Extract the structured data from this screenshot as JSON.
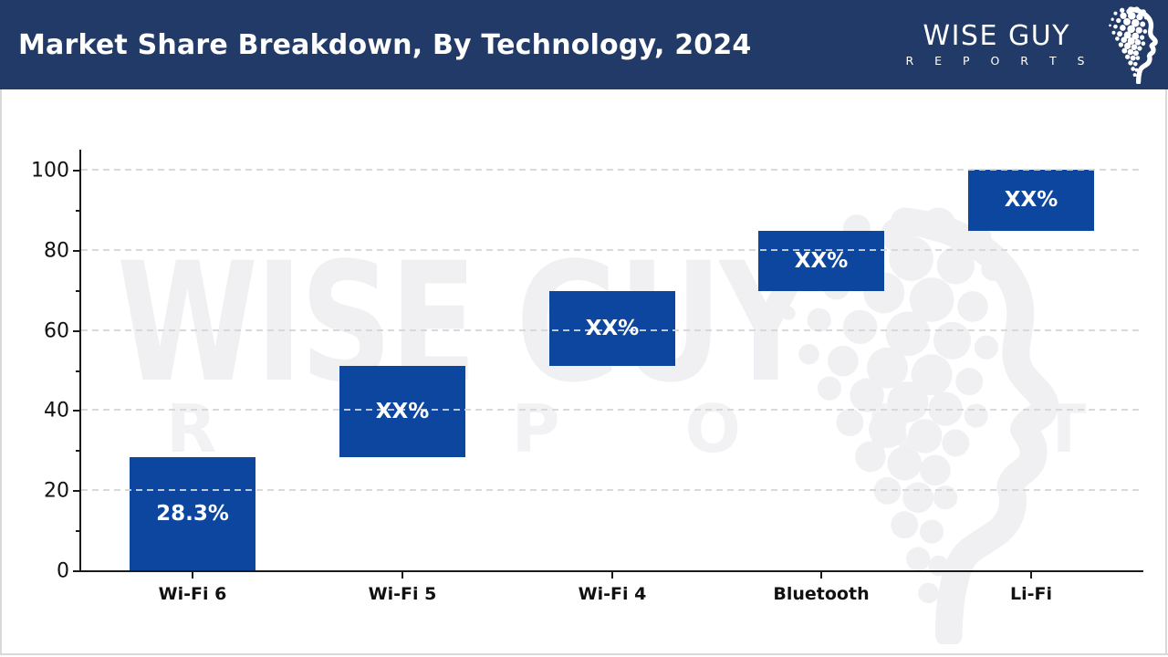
{
  "header": {
    "title": "Market Share Breakdown, By Technology, 2024",
    "logo": {
      "line1": "WISE GUY",
      "line2": "R E P O R T S"
    }
  },
  "watermark": {
    "line1": "WISE GUY",
    "line2": "R E P O R T S"
  },
  "colors": {
    "banner": "#223a67",
    "bar": "#0c469e",
    "bar_label": "#ffffff",
    "grid": "#d5d5d8",
    "axis": "#1a1a1a",
    "watermark": "#f0f0f3"
  },
  "chart_data": {
    "type": "bar",
    "subtype": "waterfall",
    "title": "Market Share Breakdown, By Technology, 2024",
    "xlabel": "",
    "ylabel": "",
    "categories": [
      "Wi-Fi 6",
      "Wi-Fi 5",
      "Wi-Fi 4",
      "Bluetooth",
      "Li-Fi"
    ],
    "segments": [
      {
        "category": "Wi-Fi 6",
        "start": 0,
        "end": 28.3,
        "label": "28.3%"
      },
      {
        "category": "Wi-Fi 5",
        "start": 28.3,
        "end": 51.0,
        "label": "XX%"
      },
      {
        "category": "Wi-Fi 4",
        "start": 51.0,
        "end": 69.8,
        "label": "XX%"
      },
      {
        "category": "Bluetooth",
        "start": 69.8,
        "end": 84.8,
        "label": "XX%"
      },
      {
        "category": "Li-Fi",
        "start": 84.8,
        "end": 100,
        "label": "XX%"
      }
    ],
    "y_ticks": [
      0,
      20,
      40,
      60,
      80,
      100
    ],
    "y_minor_ticks": [
      10,
      30,
      50,
      70,
      90
    ],
    "ylim": [
      0,
      105
    ],
    "grid": "horizontal-dashed",
    "legend": "none"
  }
}
